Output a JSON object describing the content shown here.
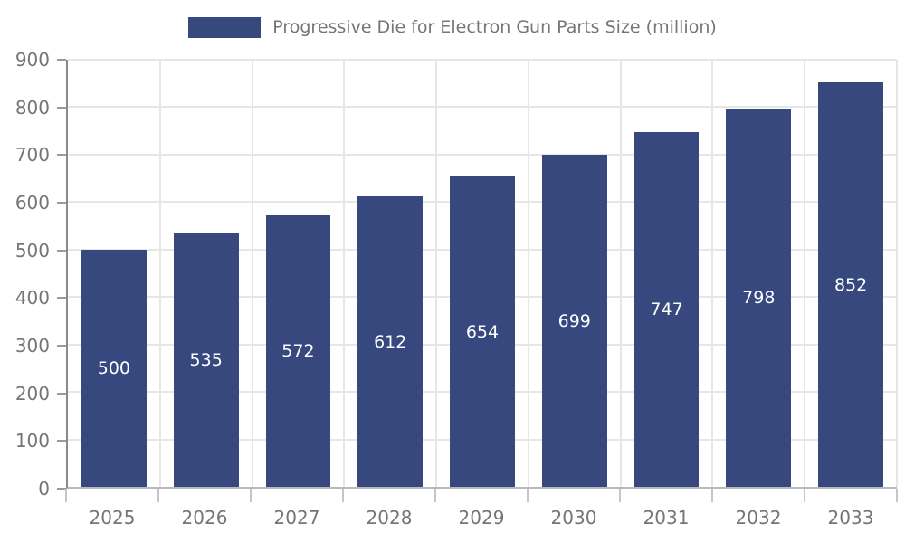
{
  "chart_data": {
    "type": "bar",
    "title": "Progressive Die for Electron Gun Parts Size (million)",
    "legend_entries": [
      "Progressive Die for Electron Gun Parts Size (million)"
    ],
    "legend_position": "top-center",
    "categories": [
      "2025",
      "2026",
      "2027",
      "2028",
      "2029",
      "2030",
      "2031",
      "2032",
      "2033"
    ],
    "values": [
      500,
      535,
      572,
      612,
      654,
      699,
      747,
      798,
      852
    ],
    "bar_value_labels_inside": true,
    "xlabel": "",
    "ylabel": "",
    "ylim": [
      0,
      900
    ],
    "yticks": [
      0,
      100,
      200,
      300,
      400,
      500,
      600,
      700,
      800,
      900
    ],
    "grid": true,
    "colors": {
      "bar": "#37487e",
      "bar_label": "#ffffff",
      "axis_text": "#757575",
      "gridline": "#e6e6e6"
    }
  }
}
